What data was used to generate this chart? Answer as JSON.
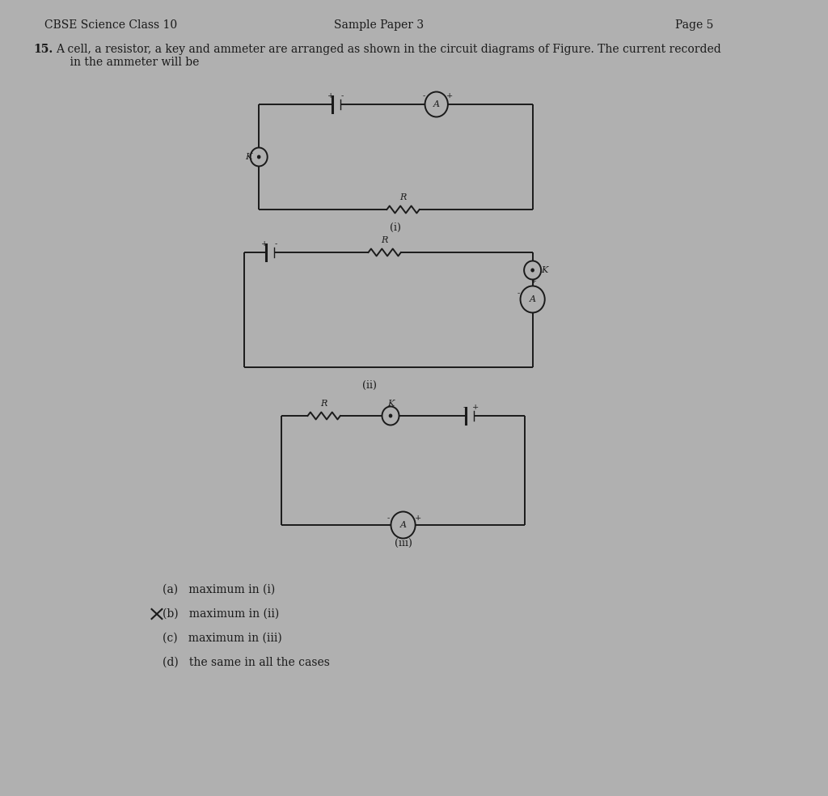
{
  "bg_color": "#b0b0b0",
  "text_color": "#1a1a1a",
  "line_color": "#1a1a1a",
  "title_left": "CBSE Science Class 10",
  "title_center": "Sample Paper 3",
  "title_right": "Page 5",
  "question_num": "15.",
  "question_text": "A cell, a resistor, a key and ammeter are arranged as shown in the circuit diagrams of Figure. The current recorded\n    in the ammeter will be",
  "diagram_labels": [
    "(i)",
    "(ii)",
    "(iii)"
  ],
  "options": [
    "(a)   maximum in (i)",
    "(b)   maximum in (ii)",
    "(c)   maximum in (iii)",
    "(d)   the same in all the cases"
  ],
  "font_size_header": 10,
  "font_size_text": 10,
  "font_size_option": 10
}
